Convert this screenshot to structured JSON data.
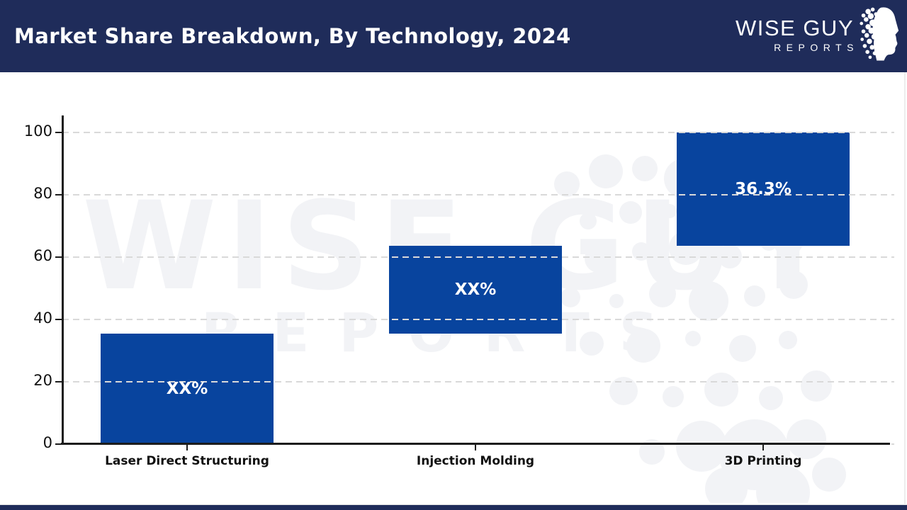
{
  "header": {
    "title": "Market Share Breakdown, By Technology, 2024",
    "logo": {
      "line1": "WISE GUY",
      "line2": "REPORTS"
    }
  },
  "watermark": {
    "line1": "WISE GUY",
    "line2": "REPORTS"
  },
  "theme": {
    "header_bg": "#1f2c5a",
    "footer_bg": "#1f2c5a",
    "bar_color": "#08449e",
    "bar_label_color": "#ffffff",
    "grid_color": "#d9d9d9",
    "axis_color": "#1c1c1c",
    "watermark_color": "#f2f3f6",
    "title_color": "#ffffff"
  },
  "chart_data": {
    "type": "bar",
    "variant": "stacked-waterfall",
    "title": "Market Share Breakdown, By Technology, 2024",
    "categories": [
      "Laser Direct Structuring",
      "Injection Molding",
      "3D Printing"
    ],
    "segments": [
      {
        "category": "Laser Direct Structuring",
        "start": 0,
        "end": 35.5,
        "label": "XX%"
      },
      {
        "category": "Injection Molding",
        "start": 35.5,
        "end": 63.7,
        "label": "XX%"
      },
      {
        "category": "3D Printing",
        "start": 63.7,
        "end": 100,
        "label": "36.3%"
      }
    ],
    "yticks": [
      0,
      20,
      40,
      60,
      80,
      100
    ],
    "ylim": [
      0,
      100
    ],
    "xlabel": "",
    "ylabel": "",
    "grid": "horizontal-dashed",
    "legend": "none"
  }
}
